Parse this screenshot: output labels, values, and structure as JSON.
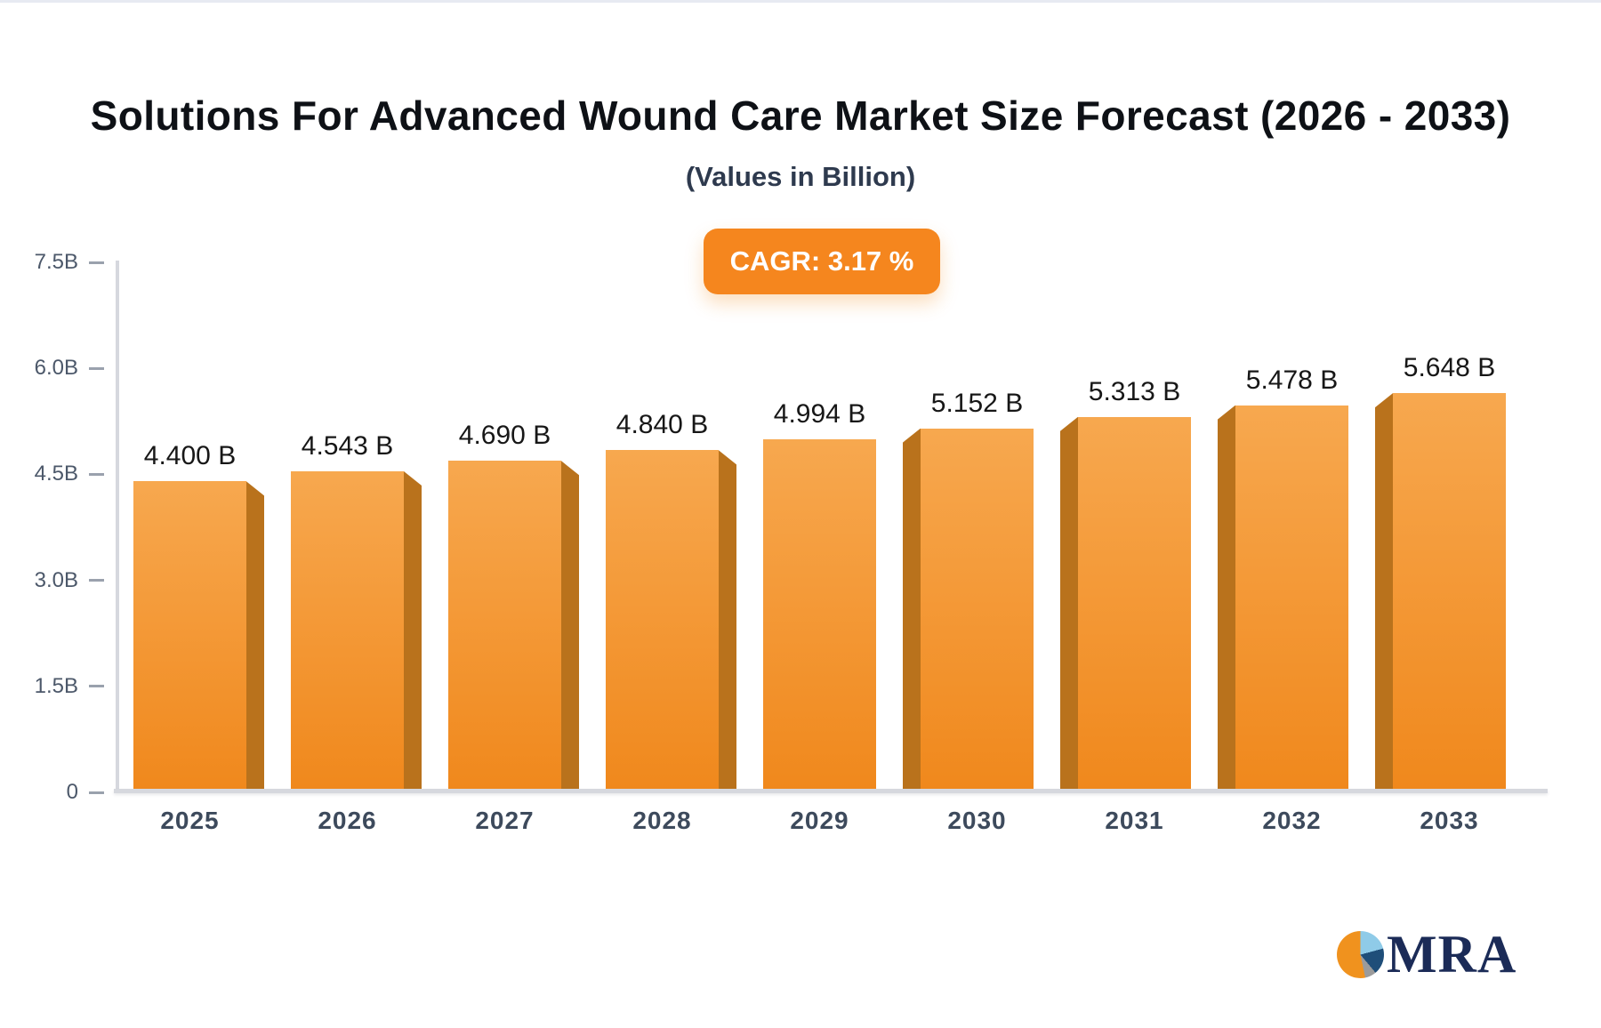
{
  "header": {
    "title": "Solutions For Advanced Wound Care Market Size Forecast (2026 - 2033)",
    "subtitle": "(Values in Billion)",
    "cagr_badge": "CAGR: 3.17 %"
  },
  "chart_data": {
    "type": "bar",
    "title": "Solutions For Advanced Wound Care Market Size Forecast (2026 - 2033)",
    "subtitle": "(Values in Billion)",
    "cagr": "3.17 %",
    "unit": "Billion",
    "categories": [
      "2025",
      "2026",
      "2027",
      "2028",
      "2029",
      "2030",
      "2031",
      "2032",
      "2033"
    ],
    "values": [
      4.4,
      4.543,
      4.69,
      4.84,
      4.994,
      5.152,
      5.313,
      5.478,
      5.648
    ],
    "bar_labels": [
      "4.400 B",
      "4.543 B",
      "4.690 B",
      "4.840 B",
      "4.994 B",
      "5.152 B",
      "5.313 B",
      "5.478 B",
      "5.648 B"
    ],
    "xlabel": "",
    "ylabel": "",
    "ylim": [
      0,
      7.5
    ],
    "y_ticks": [
      {
        "value": 0,
        "label": "0"
      },
      {
        "value": 1.5,
        "label": "1.5B"
      },
      {
        "value": 3.0,
        "label": "3.0B"
      },
      {
        "value": 4.5,
        "label": "4.5B"
      },
      {
        "value": 6.0,
        "label": "6.0B"
      },
      {
        "value": 7.5,
        "label": "7.5B"
      }
    ],
    "grid": false,
    "legend": false
  },
  "colors": {
    "title": "#0E1116",
    "subtitle": "#2E3A4E",
    "badge_bg": "#F5861E",
    "bar_face_top": "#F7A84F",
    "bar_face_bottom": "#F0881C",
    "bar_side": "#B9721C",
    "axis_line": "#D6D8DE",
    "tick_mark": "#9AA1AD",
    "tick_label": "#4C586A",
    "year_label": "#3D4A5C",
    "value_label": "#171717",
    "logo_orange": "#F0921E",
    "logo_blue": "#8FCBE8",
    "logo_navy": "#1F4E79",
    "logo_gray": "#9B9B9B",
    "logo_text": "#1B2B57"
  },
  "footer": {
    "brand": "MRA"
  }
}
